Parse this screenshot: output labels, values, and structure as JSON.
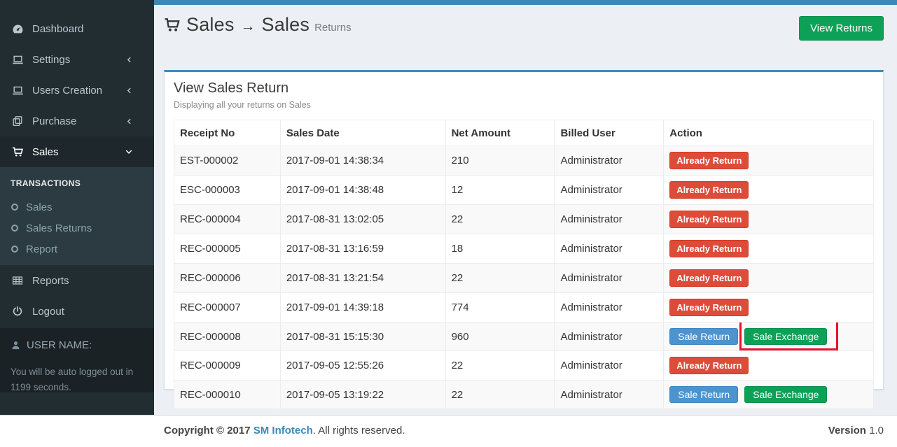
{
  "colors": {
    "top_stripe": "#3a89b8",
    "sidebar_bg": "#222d32",
    "sidebar_active_bg": "#1e282c",
    "submenu_bg": "#2c3b41",
    "user_panel_bg": "#1a2226",
    "panel_accent": "#3c8dbc",
    "danger_button": "#dd4b39",
    "primary_button": "#4d93cd",
    "success_button": "#0da157",
    "annotation_red": "#e8112d",
    "content_bg": "#ecf0f5"
  },
  "sidebar": {
    "items": [
      {
        "label": "Dashboard",
        "icon": "gauge-icon",
        "chevron": null,
        "active": false
      },
      {
        "label": "Settings",
        "icon": "laptop-icon",
        "chevron": "left",
        "active": false
      },
      {
        "label": "Users Creation",
        "icon": "laptop-icon",
        "chevron": "left",
        "active": false
      },
      {
        "label": "Purchase",
        "icon": "copy-icon",
        "chevron": "left",
        "active": false
      },
      {
        "label": "Sales",
        "icon": "cart-icon",
        "chevron": "down",
        "active": true
      }
    ],
    "submenu": {
      "header": "TRANSACTIONS",
      "items": [
        {
          "label": "Sales"
        },
        {
          "label": "Sales Returns"
        },
        {
          "label": "Report"
        }
      ]
    },
    "items_bottom": [
      {
        "label": "Reports",
        "icon": "table-icon"
      },
      {
        "label": "Logout",
        "icon": "power-icon"
      }
    ],
    "user_panel": {
      "label": "USER NAME:",
      "message_line1": "You will be auto logged out in",
      "message_line2": "1199 seconds."
    }
  },
  "header": {
    "breadcrumb_primary": "Sales",
    "breadcrumb_arrow": "→",
    "breadcrumb_secondary": "Sales",
    "breadcrumb_tertiary": "Returns",
    "view_returns_label": "View Returns"
  },
  "panel": {
    "title": "View Sales Return",
    "subtitle": "Displaying all your returns on Sales"
  },
  "table": {
    "columns": [
      "Receipt No",
      "Sales Date",
      "Net Amount",
      "Billed User",
      "Action"
    ],
    "rows": [
      {
        "receipt_no": "EST-000002",
        "sales_date": "2017-09-01 14:38:34",
        "net_amount": "210",
        "billed_user": "Administrator",
        "actions": [
          {
            "label": "Already Return",
            "style": "danger",
            "highlighted": false
          }
        ]
      },
      {
        "receipt_no": "ESC-000003",
        "sales_date": "2017-09-01 14:38:48",
        "net_amount": "12",
        "billed_user": "Administrator",
        "actions": [
          {
            "label": "Already Return",
            "style": "danger",
            "highlighted": false
          }
        ]
      },
      {
        "receipt_no": "REC-000004",
        "sales_date": "2017-08-31 13:02:05",
        "net_amount": "22",
        "billed_user": "Administrator",
        "actions": [
          {
            "label": "Already Return",
            "style": "danger",
            "highlighted": false
          }
        ]
      },
      {
        "receipt_no": "REC-000005",
        "sales_date": "2017-08-31 13:16:59",
        "net_amount": "18",
        "billed_user": "Administrator",
        "actions": [
          {
            "label": "Already Return",
            "style": "danger",
            "highlighted": false
          }
        ]
      },
      {
        "receipt_no": "REC-000006",
        "sales_date": "2017-08-31 13:21:54",
        "net_amount": "22",
        "billed_user": "Administrator",
        "actions": [
          {
            "label": "Already Return",
            "style": "danger",
            "highlighted": false
          }
        ]
      },
      {
        "receipt_no": "REC-000007",
        "sales_date": "2017-09-01 14:39:18",
        "net_amount": "774",
        "billed_user": "Administrator",
        "actions": [
          {
            "label": "Already Return",
            "style": "danger",
            "highlighted": false
          }
        ]
      },
      {
        "receipt_no": "REC-000008",
        "sales_date": "2017-08-31 15:15:30",
        "net_amount": "960",
        "billed_user": "Administrator",
        "actions": [
          {
            "label": "Sale Return",
            "style": "primary",
            "highlighted": false
          },
          {
            "label": "Sale Exchange",
            "style": "success",
            "highlighted": true
          }
        ]
      },
      {
        "receipt_no": "REC-000009",
        "sales_date": "2017-09-05 12:55:26",
        "net_amount": "22",
        "billed_user": "Administrator",
        "actions": [
          {
            "label": "Already Return",
            "style": "danger",
            "highlighted": false
          }
        ]
      },
      {
        "receipt_no": "REC-000010",
        "sales_date": "2017-09-05 13:19:22",
        "net_amount": "22",
        "billed_user": "Administrator",
        "actions": [
          {
            "label": "Sale Return",
            "style": "primary",
            "highlighted": false
          },
          {
            "label": "Sale Exchange",
            "style": "success",
            "highlighted": false
          }
        ]
      }
    ]
  },
  "annotation": {
    "highlighted_row": "REC-000008",
    "highlighted_action": "Sale Exchange",
    "highlight_color": "#e8112d"
  },
  "footer": {
    "copyright_bold": "Copyright © 2017",
    "company": "SM Infotech",
    "rights": ". All rights reserved.",
    "version_label": "Version",
    "version_value": "1.0"
  }
}
